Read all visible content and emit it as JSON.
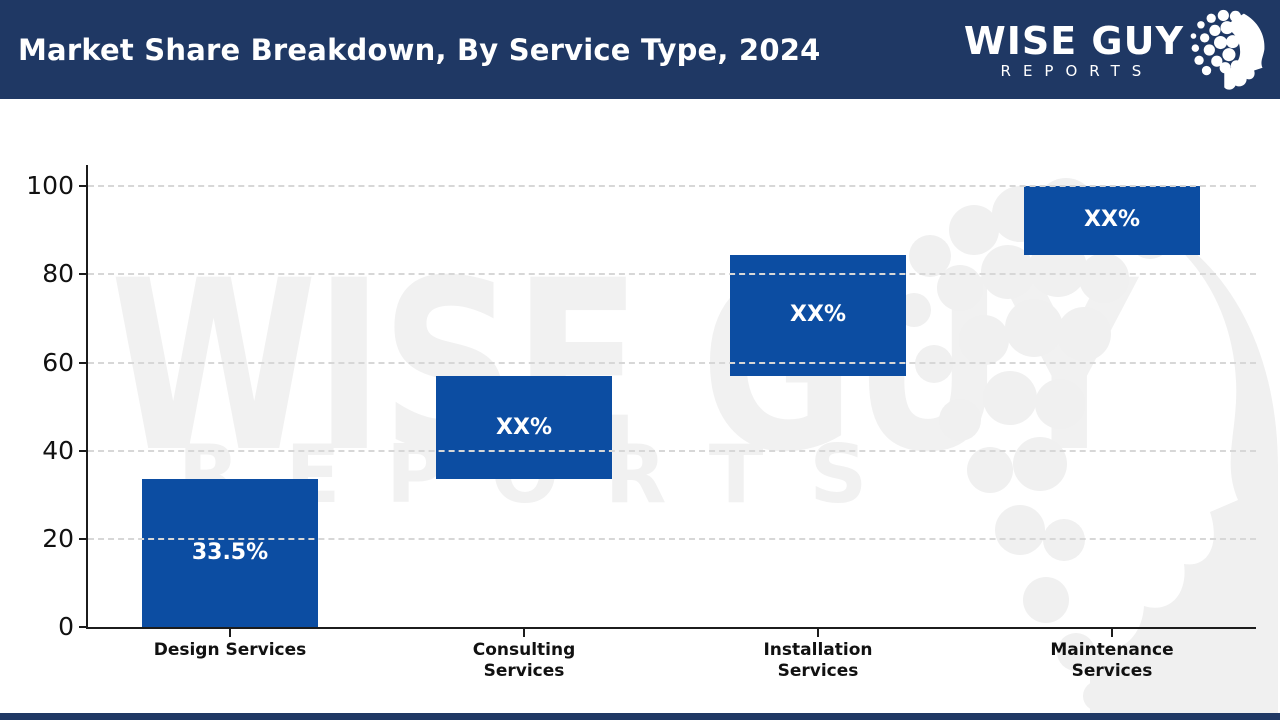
{
  "header": {
    "title": "Market Share Breakdown, By Service Type, 2024",
    "logo": {
      "name": "WISE GUY",
      "sub": "REPORTS"
    }
  },
  "watermark": {
    "line1": "WISE GUY",
    "line2": "REPORTS"
  },
  "colors": {
    "header_navy": "#1f3864",
    "bar_blue": "#0c4da2",
    "gridline_gray": "#d7d7d7",
    "axis_black": "#1c1c1c",
    "watermark_gray": "#f1f1f1",
    "value_label_white": "#ffffff",
    "tick_text_dark": "#111111"
  },
  "chart_data": {
    "type": "bar",
    "variant": "waterfall",
    "title": "Market Share Breakdown, By Service Type, 2024",
    "categories": [
      "Design Services",
      "Consulting Services",
      "Installation Services",
      "Maintenance Services"
    ],
    "category_lines": [
      [
        "Design Services"
      ],
      [
        "Consulting",
        "Services"
      ],
      [
        "Installation",
        "Services"
      ],
      [
        "Maintenance",
        "Services"
      ]
    ],
    "segments": [
      {
        "category": "Design Services",
        "start": 0,
        "end": 33.5,
        "value": 33.5,
        "label": "33.5%"
      },
      {
        "category": "Consulting Services",
        "start": 33.5,
        "end": 57,
        "value": 23.5,
        "label": "XX%"
      },
      {
        "category": "Installation Services",
        "start": 57,
        "end": 84.5,
        "value": 27.5,
        "label": "XX%"
      },
      {
        "category": "Maintenance Services",
        "start": 84.5,
        "end": 100,
        "value": 15.5,
        "label": "XX%"
      }
    ],
    "ylim": [
      0,
      100
    ],
    "yticks": [
      0,
      20,
      40,
      60,
      80,
      100
    ],
    "xlabel": "",
    "ylabel": "",
    "grid": "horizontal-dashed",
    "legend": "none"
  }
}
